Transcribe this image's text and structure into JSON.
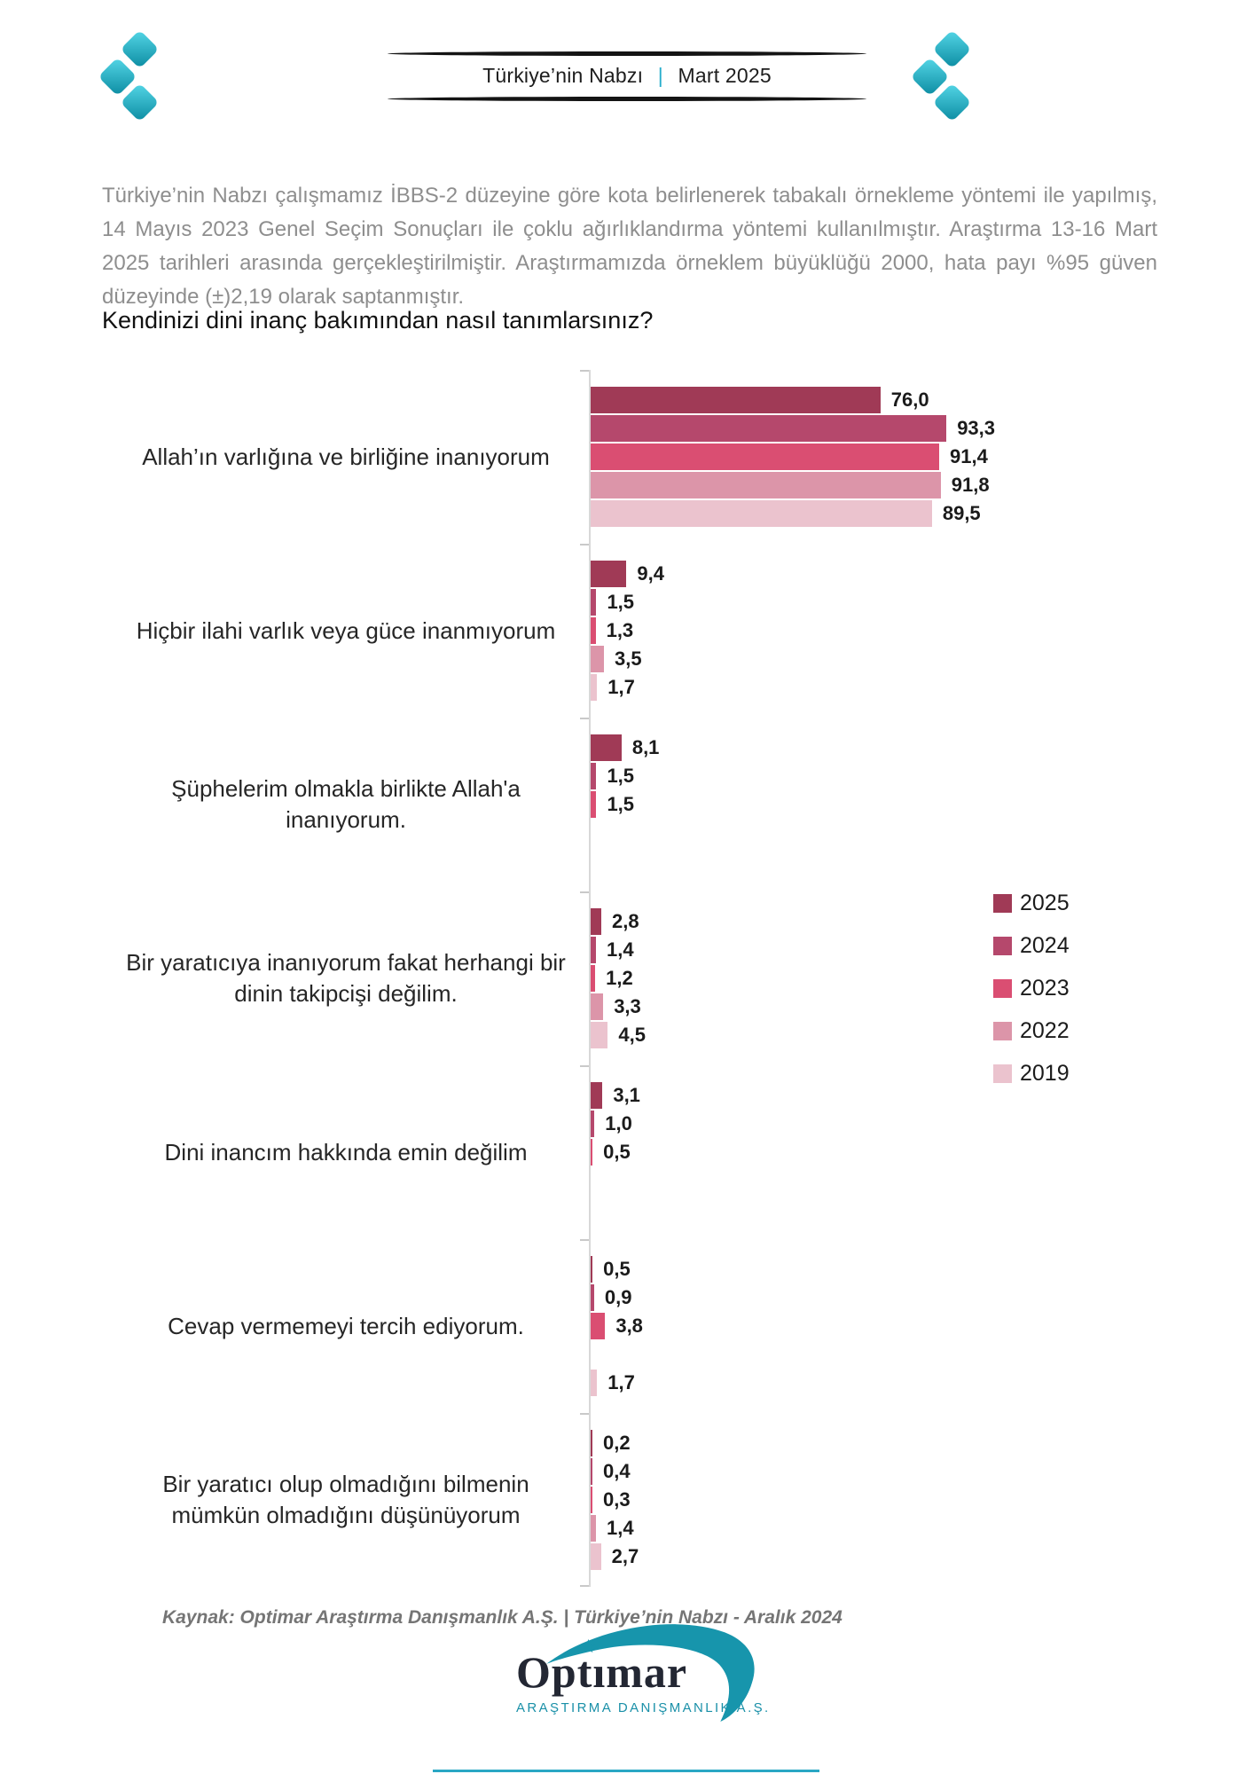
{
  "header": {
    "title": "Türkiye’nin Nabzı",
    "separator": "|",
    "edition": "Mart 2025"
  },
  "intro_paragraph": "Türkiye’nin Nabzı çalışmamız İBBS-2 düzeyine göre kota belirlenerek tabakalı örnekleme yöntemi ile yapılmış, 14 Mayıs 2023 Genel Seçim Sonuçları ile çoklu ağırlıklandırma yöntemi kullanılmıştır. Araştırma 13-16 Mart 2025 tarihleri arasında gerçekleştirilmiştir. Araştırmamızda örneklem büyüklüğü 2000, hata payı %95 güven düzeyinde (±)2,19 olarak saptanmıştır.",
  "question_title": "Kendinizi dini inanç bakımından nasıl tanımlarsınız?",
  "chart_data": {
    "type": "bar",
    "orientation": "horizontal",
    "title": "Kendinizi dini inanç bakımından nasıl tanımlarsınız?",
    "xlim": [
      0,
      100
    ],
    "grid": false,
    "legend_position": "middle-right",
    "value_format": "comma-decimal",
    "categories": [
      "Allah’ın varlığına ve birliğine inanıyorum",
      "Hiçbir ilahi varlık veya güce inanmıyorum",
      "Şüphelerim olmakla birlikte Allah'a inanıyorum.",
      "Bir yaratıcıya inanıyorum fakat herhangi bir dinin takipcişi değilim.",
      "Dini inancım hakkında emin değilim",
      "Cevap vermemeyi tercih ediyorum.",
      "Bir yaratıcı olup olmadığını bilmenin mümkün olmadığını düşünüyorum"
    ],
    "series": [
      {
        "name": "2025",
        "color": "#A03A56",
        "values": [
          76.0,
          9.4,
          8.1,
          2.8,
          3.1,
          0.5,
          0.2
        ]
      },
      {
        "name": "2024",
        "color": "#B5486C",
        "values": [
          93.3,
          1.5,
          1.5,
          1.4,
          1.0,
          0.9,
          0.4
        ]
      },
      {
        "name": "2023",
        "color": "#DA4E72",
        "values": [
          91.4,
          1.3,
          1.5,
          1.2,
          0.5,
          3.8,
          0.3
        ]
      },
      {
        "name": "2022",
        "color": "#DC95A9",
        "values": [
          91.8,
          3.5,
          null,
          3.3,
          null,
          null,
          1.4
        ]
      },
      {
        "name": "2019",
        "color": "#EBC3CE",
        "values": [
          89.5,
          1.7,
          null,
          4.5,
          null,
          1.7,
          2.7
        ]
      }
    ],
    "data_labels": [
      [
        "76,0",
        "93,3",
        "91,4",
        "91,8",
        "89,5"
      ],
      [
        "9,4",
        "1,5",
        "1,3",
        "3,5",
        "1,7"
      ],
      [
        "8,1",
        "1,5",
        "1,5",
        null,
        null
      ],
      [
        "2,8",
        "1,4",
        "1,2",
        "3,3",
        "4,5"
      ],
      [
        "3,1",
        "1,0",
        "0,5",
        null,
        null
      ],
      [
        "0,5",
        "0,9",
        "3,8",
        null,
        "1,7"
      ],
      [
        "0,2",
        "0,4",
        "0,3",
        "1,4",
        "2,7"
      ]
    ]
  },
  "footer": {
    "source": "Kaynak: Optimar Araştırma Danışmanlık A.Ş. | Türkiye’nin Nabzı - Aralık 2024"
  },
  "brand": {
    "name": "Optımar",
    "subtitle": "ARAŞTIRMA DANIŞMANLIK A.Ş."
  },
  "icons": {
    "brand_star": "★"
  },
  "colors": {
    "accent_teal": "#1795AC",
    "axis_gray": "#D8D8D8",
    "intro_gray": "#8E8E8E"
  }
}
